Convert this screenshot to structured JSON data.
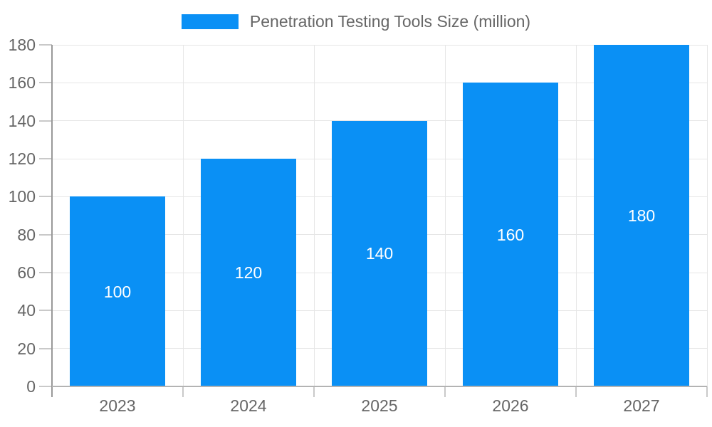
{
  "chart_data": {
    "type": "bar",
    "title": "",
    "series_name": "Penetration Testing Tools Size (million)",
    "categories": [
      "2023",
      "2024",
      "2025",
      "2026",
      "2027"
    ],
    "values": [
      100,
      120,
      140,
      160,
      180
    ],
    "xlabel": "",
    "ylabel": "",
    "ylim": [
      0,
      180
    ],
    "ytick_step": 20,
    "ytick_labels": [
      "0",
      "20",
      "40",
      "60",
      "80",
      "100",
      "120",
      "140",
      "160",
      "180"
    ],
    "grid": true,
    "legend_position": "top",
    "bar_color": "#0a90f5",
    "value_label_color": "#ffffff",
    "axis_label_color": "#666666",
    "gridline_color": "#e6e6e6"
  }
}
